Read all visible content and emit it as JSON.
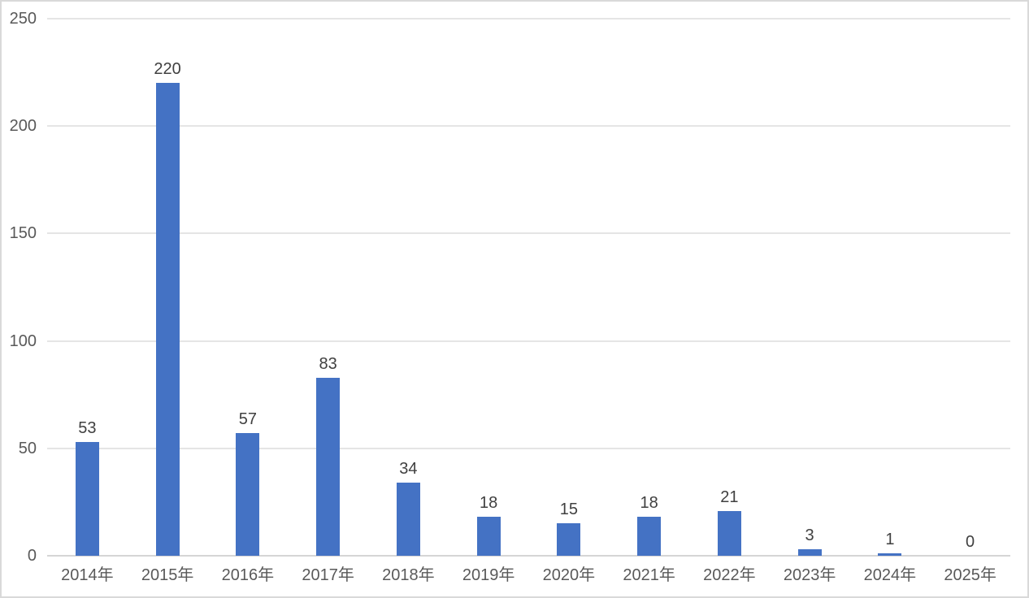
{
  "chart_data": {
    "type": "bar",
    "title": "",
    "xlabel": "",
    "ylabel": "",
    "categories": [
      "2014年",
      "2015年",
      "2016年",
      "2017年",
      "2018年",
      "2019年",
      "2020年",
      "2021年",
      "2022年",
      "2023年",
      "2024年",
      "2025年"
    ],
    "values": [
      53,
      220,
      57,
      83,
      34,
      18,
      15,
      18,
      21,
      3,
      1,
      0
    ],
    "ylim": [
      0,
      250
    ],
    "yticks": [
      0,
      50,
      100,
      150,
      200,
      250
    ],
    "grid": "horizontal",
    "legend": "none",
    "data_labels": "outside-end"
  },
  "colors": {
    "bar": "#4472C4",
    "gridline": "#E5E5E5",
    "axis_line": "#D5D5D5",
    "axis_label": "#595959",
    "data_label": "#404040",
    "chart_border": "#D9D9D9",
    "background": "#FFFFFF"
  }
}
